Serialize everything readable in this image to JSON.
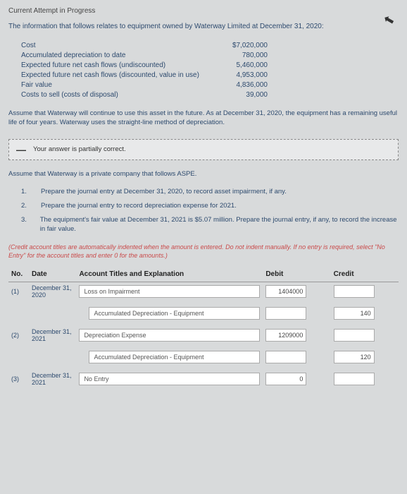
{
  "header": {
    "attempt": "Current Attempt in Progress"
  },
  "intro": "The information that follows relates to equipment owned by Waterway Limited at December 31, 2020:",
  "info_rows": [
    {
      "label": "Cost",
      "value": "$7,020,000"
    },
    {
      "label": "Accumulated depreciation to date",
      "value": "780,000"
    },
    {
      "label": "Expected future net cash flows (undiscounted)",
      "value": "5,460,000"
    },
    {
      "label": "Expected future net cash flows (discounted, value in use)",
      "value": "4,953,000"
    },
    {
      "label": "Fair value",
      "value": "4,836,000"
    },
    {
      "label": "Costs to sell (costs of disposal)",
      "value": "39,000"
    }
  ],
  "assume1": "Assume that Waterway will continue to use this asset in the future. As at December 31, 2020, the equipment has a remaining useful life of four years. Waterway uses the straight-line method of depreciation.",
  "partial": {
    "text": "Your answer is partially correct."
  },
  "assume2": "Assume that Waterway is a private company that follows ASPE.",
  "questions": [
    {
      "n": "1.",
      "t": "Prepare the journal entry at December 31, 2020, to record asset impairment, if any."
    },
    {
      "n": "2.",
      "t": "Prepare the journal entry to record depreciation expense for 2021."
    },
    {
      "n": "3.",
      "t": "The equipment's fair value at December 31, 2021 is $5.07 million. Prepare the journal entry, if any, to record the increase in fair value."
    }
  ],
  "credit_note": "(Credit account titles are automatically indented when the amount is entered. Do not indent manually. If no entry is required, select \"No Entry\" for the account titles and enter 0 for the amounts.)",
  "table": {
    "headers": {
      "no": "No.",
      "date": "Date",
      "acct": "Account Titles and Explanation",
      "debit": "Debit",
      "credit": "Credit"
    },
    "rows": [
      {
        "no": "(1)",
        "date": "December 31, 2020",
        "acct": "Loss on Impairment",
        "debit": "1404000",
        "credit": "",
        "indent": false
      },
      {
        "no": "",
        "date": "",
        "acct": "Accumulated Depreciation - Equipment",
        "debit": "",
        "credit": "140",
        "indent": true
      },
      {
        "no": "(2)",
        "date": "December 31, 2021",
        "acct": "Depreciation Expense",
        "debit": "1209000",
        "credit": "",
        "indent": false
      },
      {
        "no": "",
        "date": "",
        "acct": "Accumulated Depreciation - Equipment",
        "debit": "",
        "credit": "120",
        "indent": true
      },
      {
        "no": "(3)",
        "date": "December 31, 2021",
        "acct": "No Entry",
        "debit": "0",
        "credit": "",
        "indent": false
      }
    ]
  }
}
